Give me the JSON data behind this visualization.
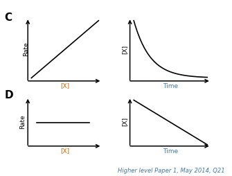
{
  "label_C": "C",
  "label_D": "D",
  "xlabel_rate": "[X]",
  "xlabel_time": "Time",
  "ylabel_rate": "Rate",
  "ylabel_conc": "[X]",
  "footer": "Higher level Paper 1, May 2014, Q21",
  "label_color": "#000000",
  "axis_label_orange": "#CC6600",
  "axis_label_blue": "#4477AA",
  "footer_color": "#4477AA",
  "line_color": "#000000",
  "bg_color": "#FFFFFF"
}
